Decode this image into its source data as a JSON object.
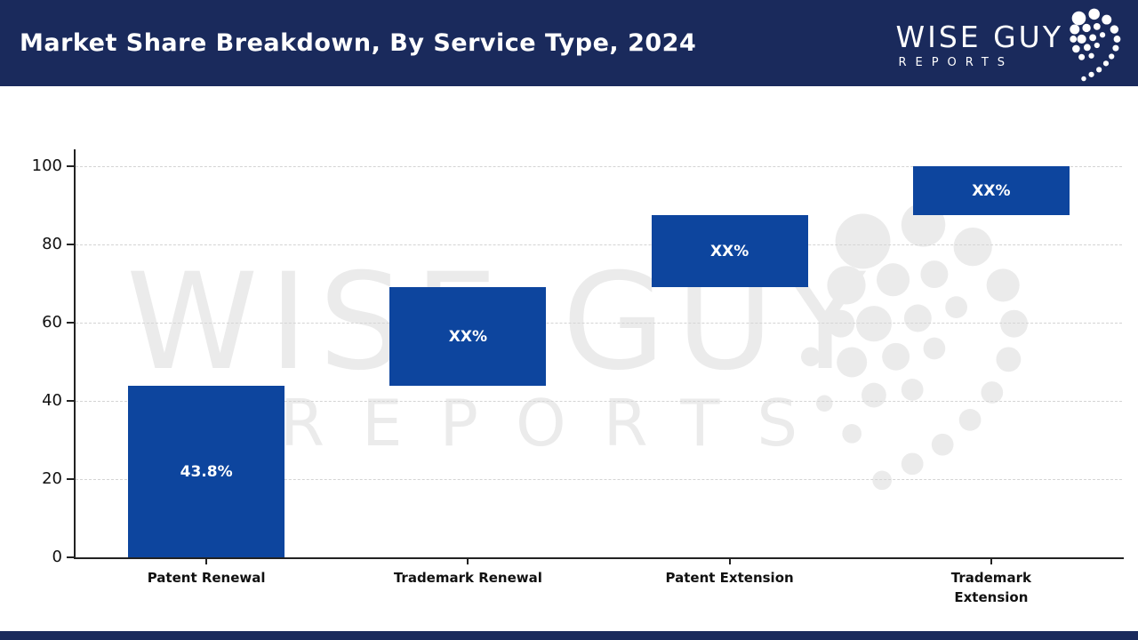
{
  "header": {
    "title": "Market Share Breakdown, By Service Type, 2024",
    "bg_color": "#1a2a5c",
    "logo": {
      "line1": "WISE GUY",
      "line2": "REPORTS"
    }
  },
  "watermark": {
    "line1": "WISE GUY",
    "line2": "REPORTS"
  },
  "chart_data": {
    "type": "bar",
    "subtype": "waterfall",
    "title": "Market Share Breakdown, By Service Type, 2024",
    "categories": [
      "Patent Renewal",
      "Trademark Renewal",
      "Patent Extension",
      "Trademark Extension"
    ],
    "bars": [
      {
        "category": "Patent Renewal",
        "start": 0,
        "end": 43.8,
        "label": "43.8%"
      },
      {
        "category": "Trademark Renewal",
        "start": 43.8,
        "end": 69,
        "label": "XX%"
      },
      {
        "category": "Patent Extension",
        "start": 69,
        "end": 87.5,
        "label": "XX%"
      },
      {
        "category": "Trademark Extension",
        "start": 87.5,
        "end": 100,
        "label": "XX%"
      }
    ],
    "xlabel": "",
    "ylabel": "",
    "ylim": [
      0,
      100
    ],
    "yticks": [
      0,
      20,
      40,
      60,
      80,
      100
    ],
    "grid": "horizontal-dashed",
    "legend": "none",
    "bar_color": "#0d459e",
    "label_color": "#ffffff"
  }
}
